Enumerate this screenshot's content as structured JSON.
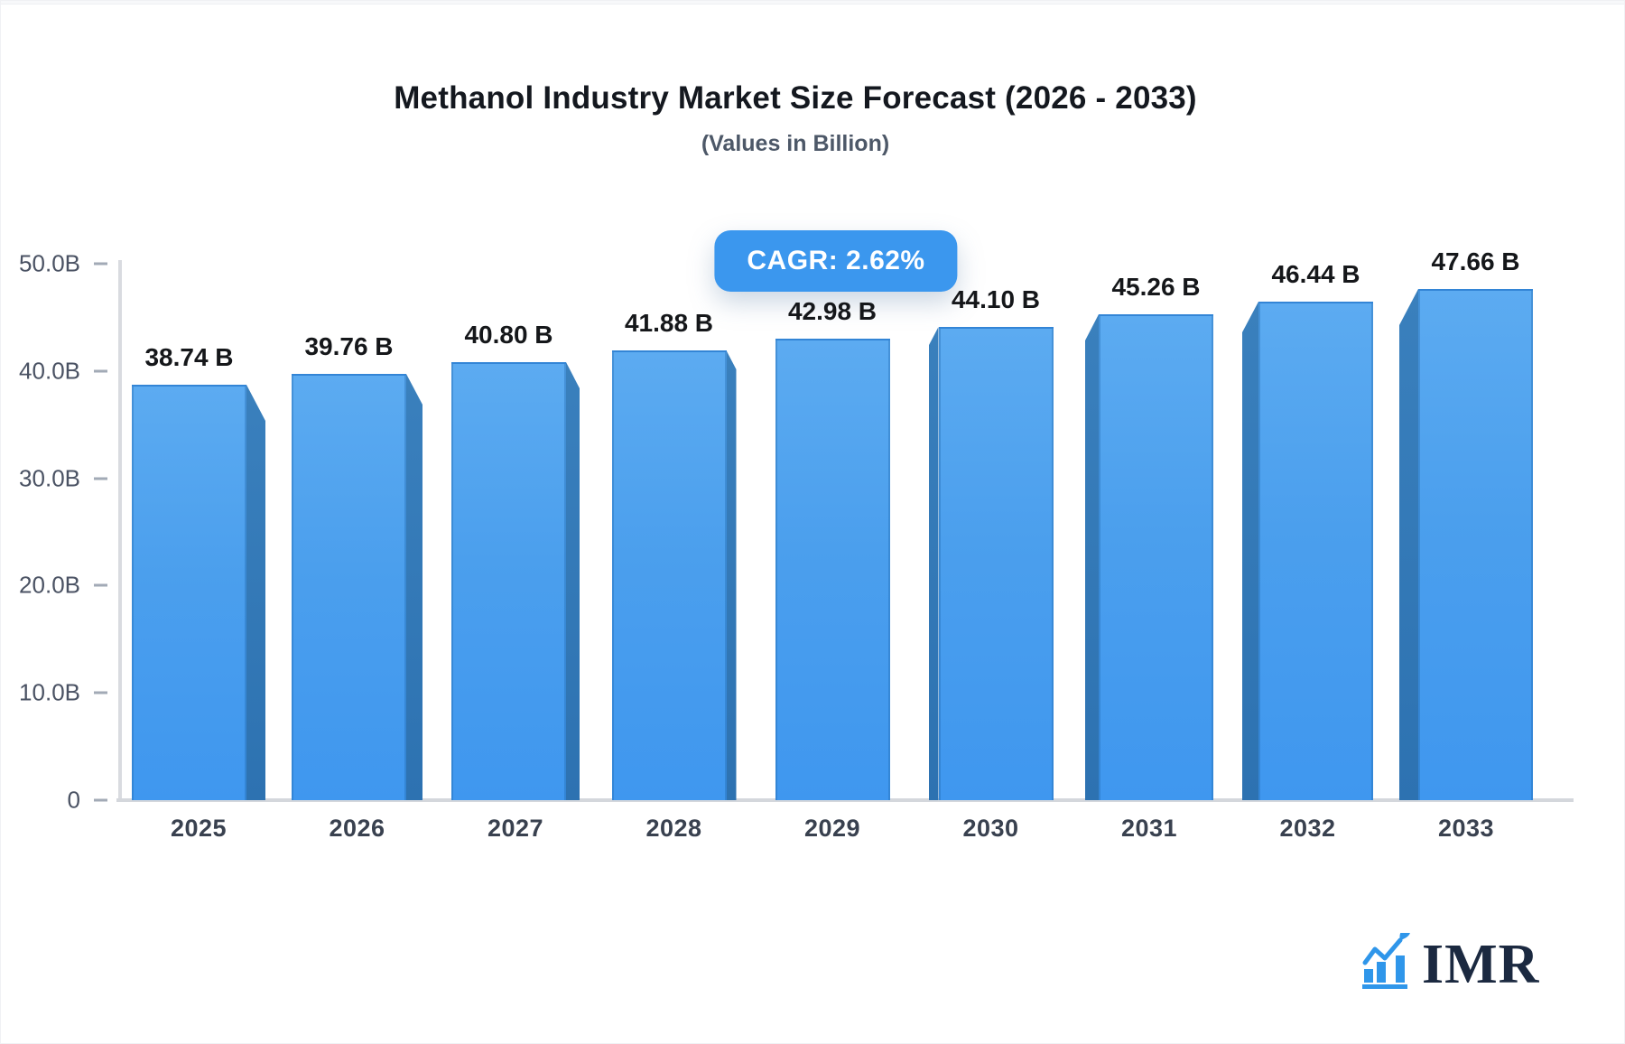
{
  "header": {
    "title": "Methanol Industry Market Size Forecast (2026 - 2033)",
    "subtitle": "(Values in Billion)"
  },
  "badge": {
    "label": "CAGR: 2.62%",
    "bg": "#3b97ee",
    "text_color": "#ffffff"
  },
  "chart_data": {
    "type": "bar",
    "title": "Methanol Industry Market Size Forecast (2026 - 2033)",
    "subtitle": "(Values in Billion)",
    "categories": [
      "2025",
      "2026",
      "2027",
      "2028",
      "2029",
      "2030",
      "2031",
      "2032",
      "2033"
    ],
    "values": [
      38.74,
      39.76,
      40.8,
      41.88,
      42.98,
      44.1,
      45.26,
      46.44,
      47.66
    ],
    "value_labels": [
      "38.74 B",
      "39.76 B",
      "40.80 B",
      "41.88 B",
      "42.98 B",
      "44.10 B",
      "45.26 B",
      "46.44 B",
      "47.66 B"
    ],
    "unit": "Billion",
    "cagr_label": "CAGR: 2.62%",
    "xlabel": "",
    "ylabel": "",
    "ylim": [
      0,
      50
    ],
    "y_ticks": [
      {
        "label": "50.0B",
        "value": 50
      },
      {
        "label": "40.0B",
        "value": 40
      },
      {
        "label": "30.0B",
        "value": 30
      },
      {
        "label": "20.0B",
        "value": 20
      },
      {
        "label": "10.0B",
        "value": 10
      },
      {
        "label": "0",
        "value": 0
      }
    ],
    "grid": false,
    "legend": false,
    "bar_color": "#459ae9",
    "bar_side_color": "#2e75b5",
    "style": "pseudo-3d-bars"
  },
  "logo": {
    "text": "IMR",
    "icon": "bar-chart-leaf-icon",
    "text_color": "#1b2940",
    "icon_color": "#2f96ea"
  }
}
